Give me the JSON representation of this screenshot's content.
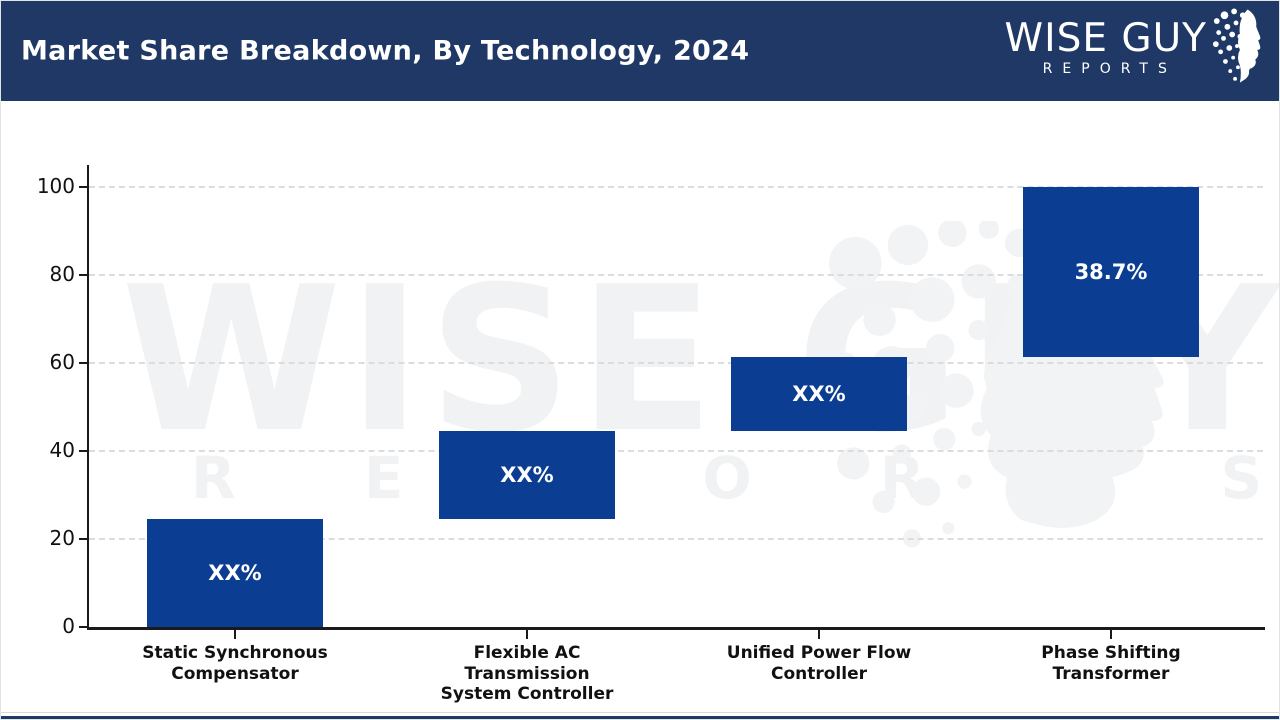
{
  "header": {
    "title": "Market Share Breakdown, By Technology, 2024",
    "logo": {
      "line1": "WISE GUY",
      "line2": "REPORTS"
    }
  },
  "watermark": {
    "line1": "WISE GUY",
    "line2": "R E P O R T S"
  },
  "colors": {
    "header_bg": "#1f3865",
    "bar": "#0b3e92",
    "gridline": "#dcdcdc",
    "axis": "#1a1a1a",
    "bar_label": "#ffffff",
    "watermark": "#f1f2f4"
  },
  "chart_data": {
    "type": "bar",
    "subtype": "floating-waterfall",
    "title": "Market Share Breakdown, By Technology, 2024",
    "xlabel": "",
    "ylabel": "",
    "ylim": [
      0,
      105
    ],
    "yticks": [
      0,
      20,
      40,
      60,
      80,
      100
    ],
    "grid": "horizontal-dashed",
    "legend": "none",
    "categories": [
      "Static Synchronous\nCompensator",
      "Flexible AC\nTransmission\nSystem Controller",
      "Unified Power Flow\nController",
      "Phase Shifting\nTransformer"
    ],
    "bars": [
      {
        "value_label": "XX%",
        "value": 24.5,
        "start": 0,
        "end": 24.5
      },
      {
        "value_label": "XX%",
        "value": 20.0,
        "start": 24.5,
        "end": 44.5
      },
      {
        "value_label": "XX%",
        "value": 16.8,
        "start": 44.5,
        "end": 61.3
      },
      {
        "value_label": "38.7%",
        "value": 38.7,
        "start": 61.3,
        "end": 100
      }
    ]
  }
}
